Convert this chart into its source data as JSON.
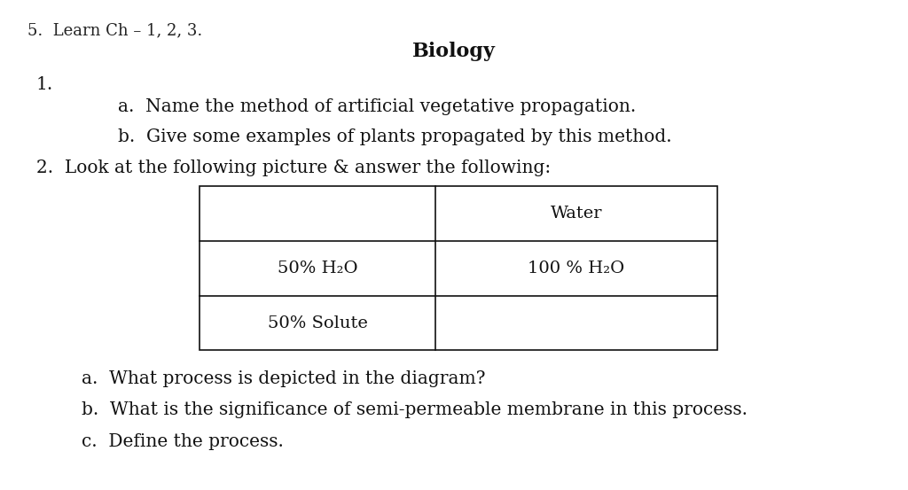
{
  "background_color": "#ffffff",
  "header_text": "5.  Learn Ch – 1, 2, 3.",
  "title": "Biology",
  "line1_num": "1.",
  "line2": "a.  Name the method of artificial vegetative propagation.",
  "line3": "b.  Give some examples of plants propagated by this method.",
  "line4": "2.  Look at the following picture & answer the following:",
  "table": {
    "cell_00": "",
    "cell_01": "Water",
    "cell_10": "50% H₂O",
    "cell_11": "100 % H₂O",
    "cell_20": "50% Solute",
    "cell_21": ""
  },
  "qa": "a.  What process is depicted in the diagram?",
  "qb": "b.  What is the significance of semi-permeable membrane in this process.",
  "qc": "c.  Define the process.",
  "font_size_title": 16,
  "font_size_body": 14.5,
  "font_size_header": 13,
  "font_size_cell": 14
}
